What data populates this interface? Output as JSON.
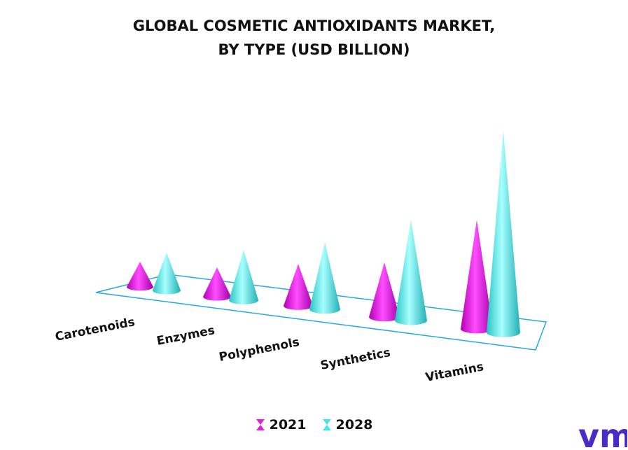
{
  "title_line1": "GLOBAL COSMETIC ANTIOXIDANTS MARKET,",
  "title_line2": "BY TYPE (USD BILLION)",
  "logo_text": "vmr",
  "colors": {
    "2021": "#e020e0",
    "2028": "#40e8e8",
    "frame": "#29a8e0",
    "logo": "#4b2bc7"
  },
  "chart_data": {
    "type": "bar",
    "shape": "3d-cone",
    "categories": [
      "Carotenoids",
      "Enzymes",
      "Polyphenols",
      "Synthetics",
      "Vitamins"
    ],
    "series": [
      {
        "name": "2021",
        "values": [
          0.6,
          0.7,
          1.0,
          1.3,
          2.6
        ]
      },
      {
        "name": "2028",
        "values": [
          0.9,
          1.2,
          1.6,
          2.4,
          4.8
        ]
      }
    ],
    "title": "GLOBAL COSMETIC ANTIOXIDANTS MARKET, BY TYPE (USD BILLION)",
    "xlabel": "",
    "ylabel": "",
    "grid": false,
    "legend": "bottom-center"
  }
}
